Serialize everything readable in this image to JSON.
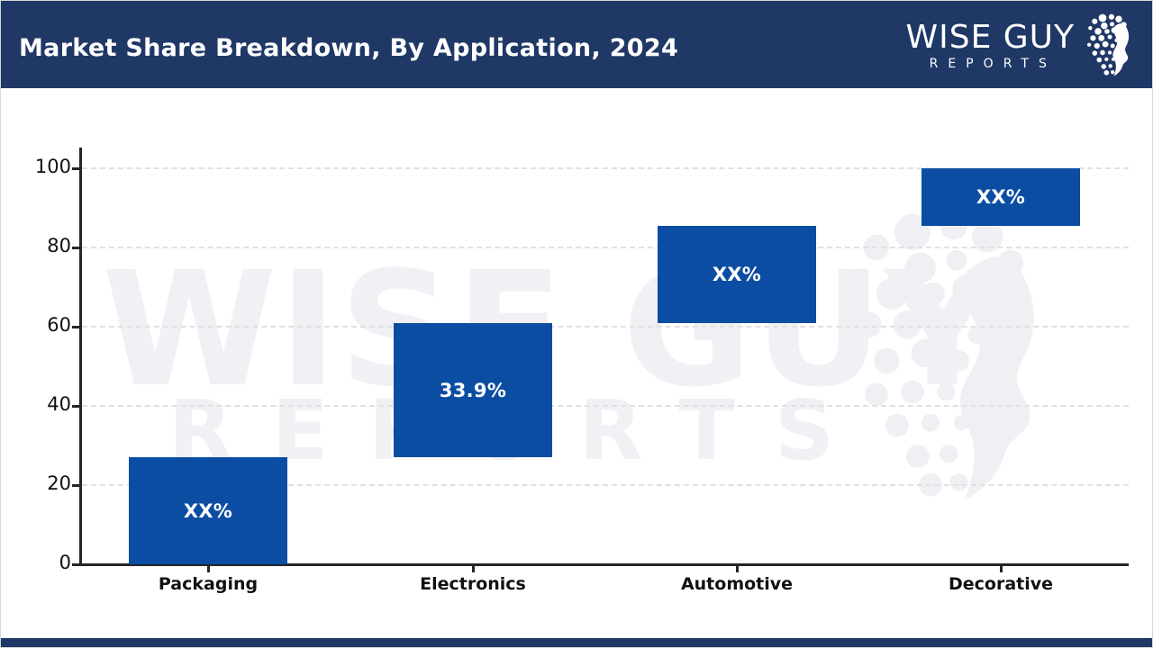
{
  "header": {
    "title": "Market Share Breakdown, By Application, 2024"
  },
  "logo": {
    "line1": "WISE GUY",
    "line2": "REPORTS"
  },
  "watermark": {
    "line1": "WISE GUY",
    "line2": "REPORTS"
  },
  "colors": {
    "header_bg": "#1f3866",
    "footer_bg": "#1f3866",
    "bar": "#0b4da2",
    "bar_label": "#ffffff",
    "grid": "#e1e1e1",
    "axis": "#262626",
    "watermark": "#f0f1f4"
  },
  "chart_data": {
    "type": "bar",
    "subtype": "floating-segment-bars",
    "title": "Market Share Breakdown, By Application, 2024",
    "xlabel": "",
    "ylabel": "",
    "categories": [
      "Packaging",
      "Electronics",
      "Automotive",
      "Decorative"
    ],
    "segments": [
      {
        "category": "Packaging",
        "start": 0,
        "end": 27.0,
        "label": "XX%"
      },
      {
        "category": "Electronics",
        "start": 27.0,
        "end": 60.9,
        "label": "33.9%"
      },
      {
        "category": "Automotive",
        "start": 60.9,
        "end": 85.4,
        "label": "XX%"
      },
      {
        "category": "Decorative",
        "start": 85.4,
        "end": 100.0,
        "label": "XX%"
      }
    ],
    "ylim": [
      0,
      100
    ],
    "yticks": [
      0,
      20,
      40,
      60,
      80,
      100
    ],
    "grid": "horizontal-dashed",
    "legend": "none"
  }
}
